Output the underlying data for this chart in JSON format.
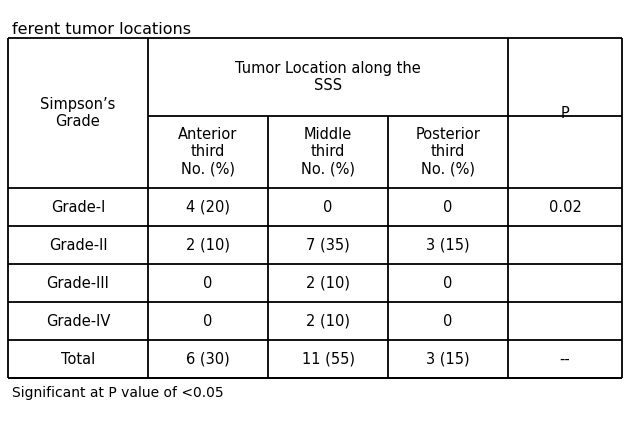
{
  "title_text": "ferent tumor locations",
  "footer_text": "Significant at P value of <0.05",
  "col0_header": "Simpson’s\nGrade",
  "col_group_header": "Tumor Location along the\nSSS",
  "col_p_header": "P",
  "subheaders": [
    "Anterior\nthird\nNo. (%)",
    "Middle\nthird\nNo. (%)",
    "Posterior\nthird\nNo. (%)"
  ],
  "row_headers": [
    "Grade-I",
    "Grade-II",
    "Grade-III",
    "Grade-IV",
    "Total"
  ],
  "data": [
    [
      "4 (20)",
      "0",
      "0",
      "0.02"
    ],
    [
      "2 (10)",
      "7 (35)",
      "3 (15)",
      ""
    ],
    [
      "0",
      "2 (10)",
      "0",
      ""
    ],
    [
      "0",
      "2 (10)",
      "0",
      ""
    ],
    [
      "6 (30)",
      "11 (55)",
      "3 (15)",
      "--"
    ]
  ],
  "bg_color": "#ffffff",
  "text_color": "#000000",
  "font_size": 10.5,
  "title_font_size": 11.5,
  "footer_font_size": 10
}
